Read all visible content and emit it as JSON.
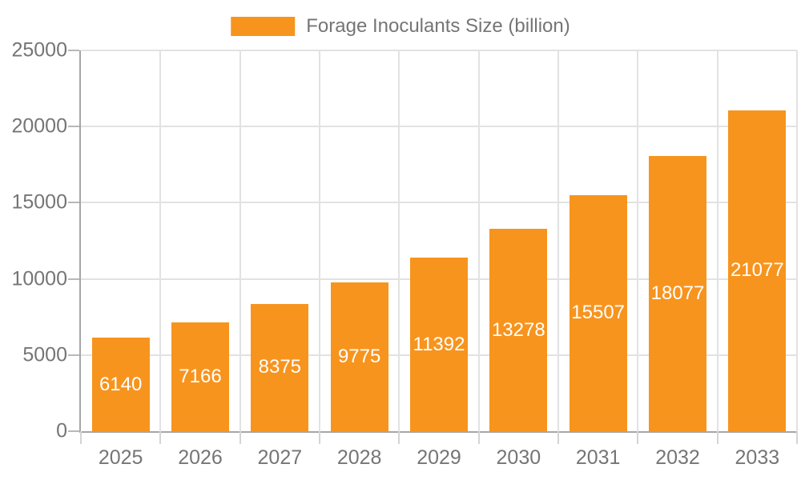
{
  "chart_data": {
    "type": "bar",
    "title": "Forage Inoculants Size (billion)",
    "categories": [
      "2025",
      "2026",
      "2027",
      "2028",
      "2029",
      "2030",
      "2031",
      "2032",
      "2033"
    ],
    "series": [
      {
        "name": "Forage Inoculants Size (billion)",
        "values": [
          6140,
          7166,
          8375,
          9775,
          11392,
          13278,
          15507,
          18077,
          21077
        ]
      }
    ],
    "value_labels": [
      "6140",
      "7166",
      "8375",
      "9775",
      "11392",
      "13278",
      "15507",
      "18077",
      "21077"
    ],
    "xlabel": "",
    "ylabel": "",
    "ylim": [
      0,
      25000
    ],
    "ytick_interval": 5000,
    "ytick_labels": [
      "0",
      "5000",
      "10000",
      "15000",
      "20000",
      "25000"
    ],
    "grid": "horizontal and vertical gridlines on",
    "legend_position": "top-center",
    "colors": {
      "bar": "#f7941e",
      "value_label": "#ffffff",
      "axis_text": "#757575",
      "axis_line": "#a6a6a6",
      "gridline": "#e2e2e2",
      "tick": "#b8b8b8",
      "tick_light": "#d4d4d4",
      "background": "#ffffff"
    }
  },
  "legend": {
    "label": "Forage Inoculants Size (billion)"
  }
}
